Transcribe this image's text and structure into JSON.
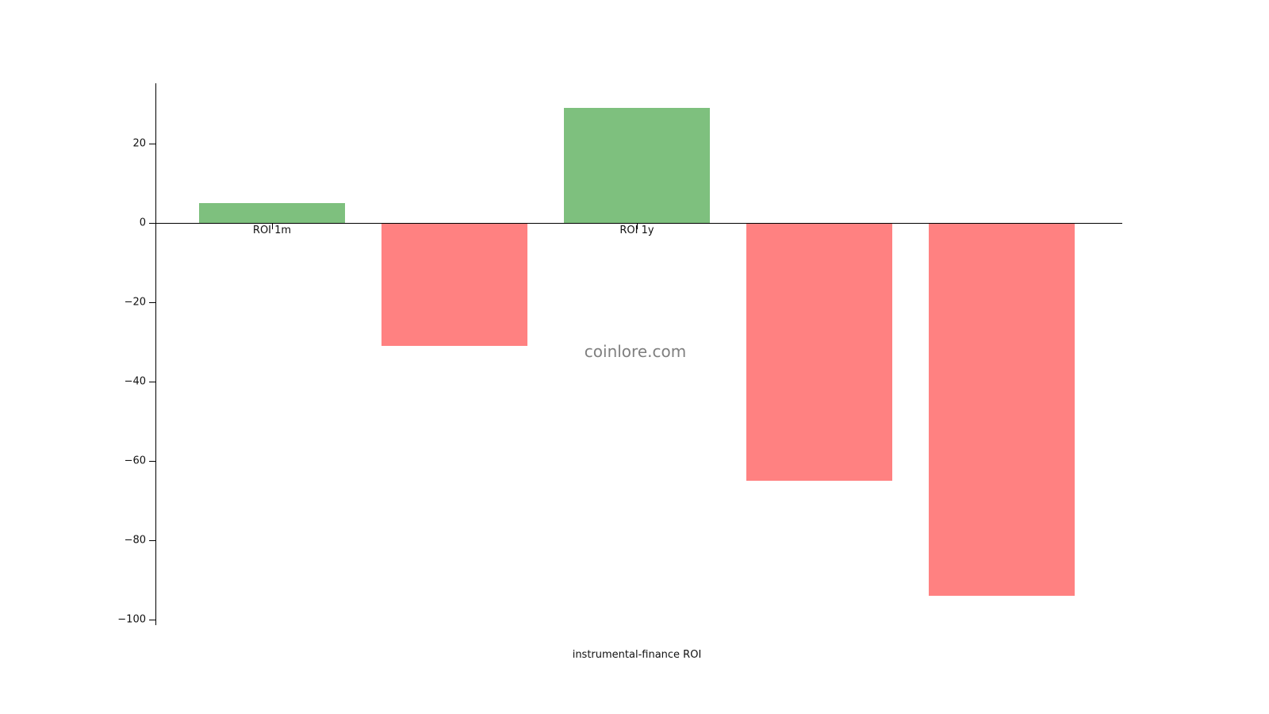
{
  "chart_data": {
    "type": "bar",
    "title": "instrumental-finance ROI",
    "watermark": "coinlore.com",
    "bars": [
      {
        "label": "ROI 1m",
        "value": 5
      },
      {
        "label": "",
        "value": -31
      },
      {
        "label": "ROI 1y",
        "value": 29
      },
      {
        "label": "",
        "value": -65
      },
      {
        "label": "",
        "value": -94
      }
    ],
    "y_ticks": [
      {
        "label": "20",
        "value": 20
      },
      {
        "label": "0",
        "value": 0
      },
      {
        "label": "−20",
        "value": -20
      },
      {
        "label": "−40",
        "value": -40
      },
      {
        "label": "−60",
        "value": -60
      },
      {
        "label": "−80",
        "value": -80
      },
      {
        "label": "−100",
        "value": -100
      }
    ],
    "ylim": [
      -101,
      35
    ],
    "xlabel": "",
    "ylabel": "",
    "grid": false,
    "legend": false,
    "colors": {
      "positive": "#7ec07e",
      "negative": "#ff8181"
    }
  }
}
